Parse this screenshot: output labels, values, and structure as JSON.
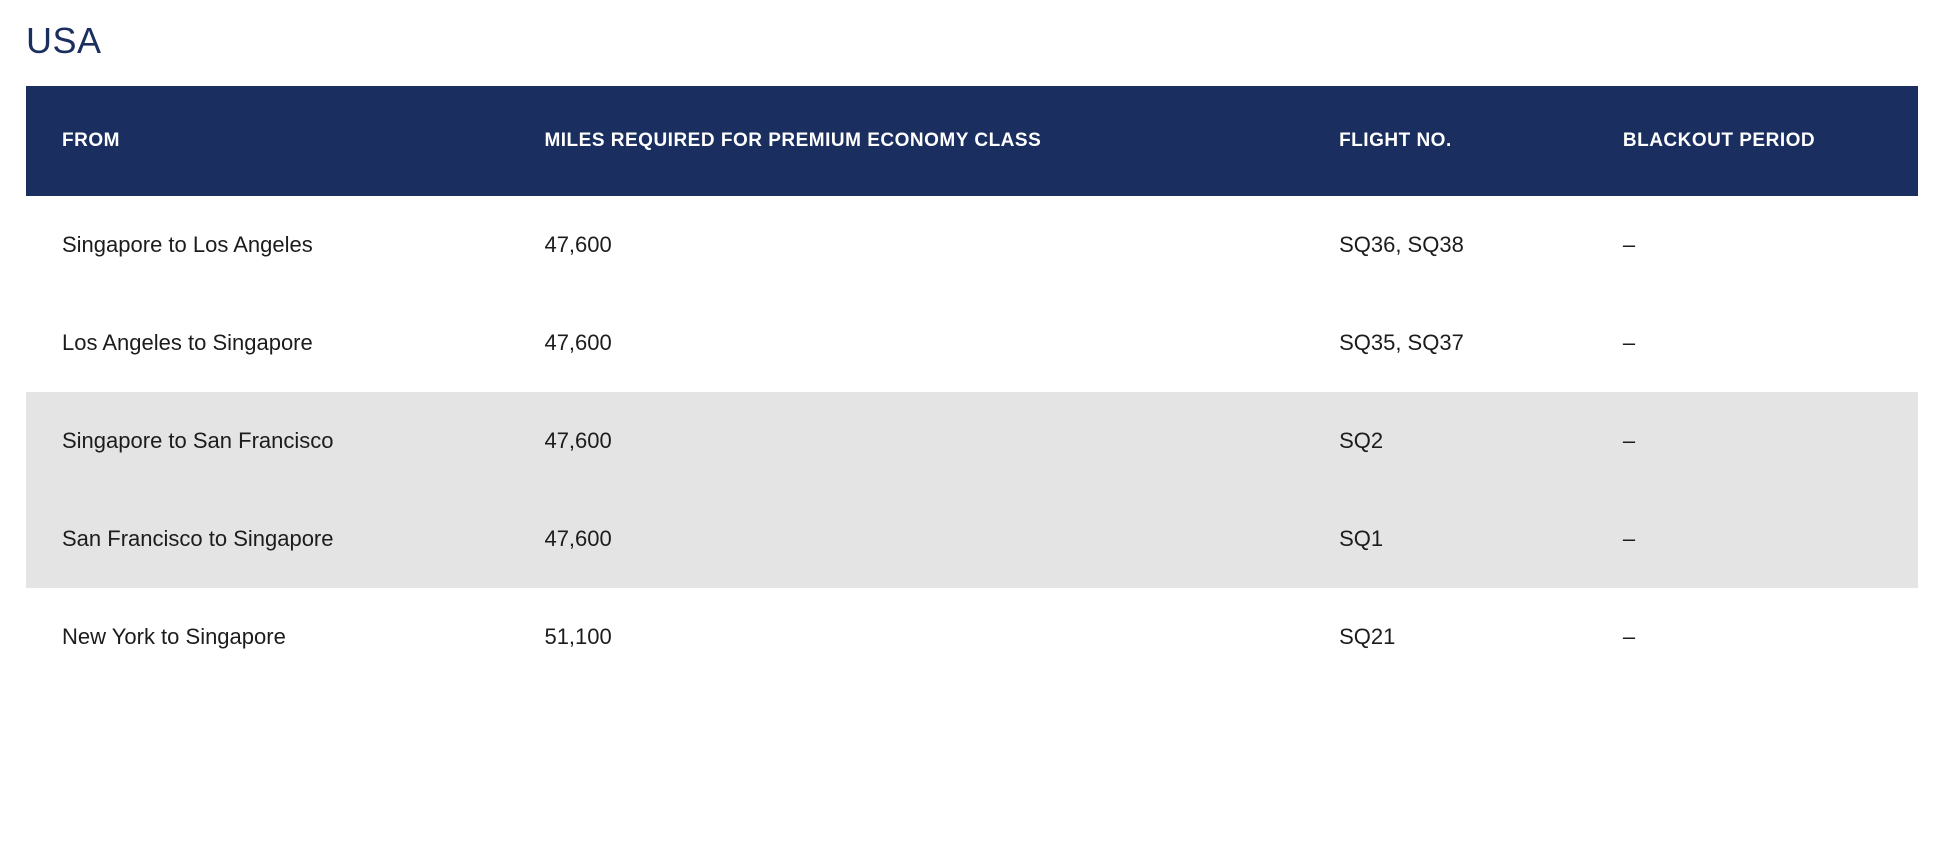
{
  "section": {
    "title": "USA"
  },
  "colors": {
    "header_bg": "#1a2f5f",
    "header_text": "#ffffff",
    "row_bg": "#ffffff",
    "row_alt_bg": "#e4e4e4",
    "cell_text": "#1c1c1c",
    "title_color": "#1a2f5f"
  },
  "table": {
    "columns": [
      "FROM",
      "MILES REQUIRED FOR PREMIUM ECONOMY CLASS",
      "FLIGHT NO.",
      "BLACKOUT PERIOD"
    ],
    "rows": [
      {
        "from": "Singapore to Los Angeles",
        "miles": "47,600",
        "flight": "SQ36, SQ38",
        "blackout": "–",
        "alt": false
      },
      {
        "from": "Los Angeles to Singapore",
        "miles": "47,600",
        "flight": "SQ35, SQ37",
        "blackout": "–",
        "alt": false
      },
      {
        "from": "Singapore to San Francisco",
        "miles": "47,600",
        "flight": "SQ2",
        "blackout": "–",
        "alt": true
      },
      {
        "from": "San Francisco to Singapore",
        "miles": "47,600",
        "flight": "SQ1",
        "blackout": "–",
        "alt": true
      },
      {
        "from": "New York to Singapore",
        "miles": "51,100",
        "flight": "SQ21",
        "blackout": "–",
        "alt": false
      }
    ]
  }
}
